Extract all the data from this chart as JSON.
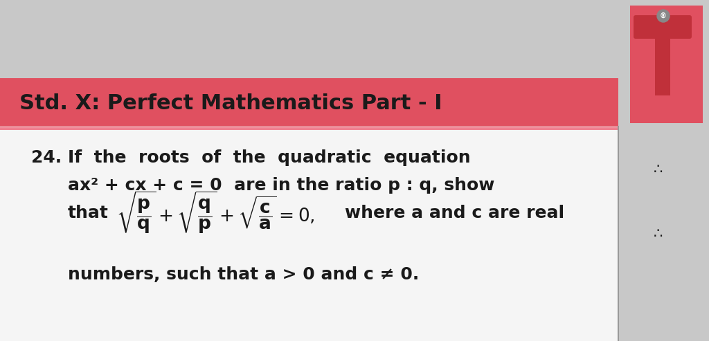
{
  "bg_color": "#c8c8c8",
  "header_bg_color": "#e05060",
  "header_text": "Std. X: Perfect Mathematics Part - I",
  "header_text_color": "#1a1a1a",
  "header_font_size": 22,
  "content_bg_color": "#e8e8e8",
  "problem_number": "24.",
  "line1": "If  the  roots  of  the  quadratic  equation",
  "line2": "ax² + cx + c = 0  are in the ratio p : q, show",
  "line3_that": "that",
  "line4": "numbers, such that a > 0 and c ≠ 0.",
  "text_color": "#1a1a1a",
  "font_size": 18,
  "therefore_color": "#1a1a1a",
  "pink_accent": "#e05060",
  "right_panel_color": "#c8c8c8",
  "divider_color": "#999999"
}
